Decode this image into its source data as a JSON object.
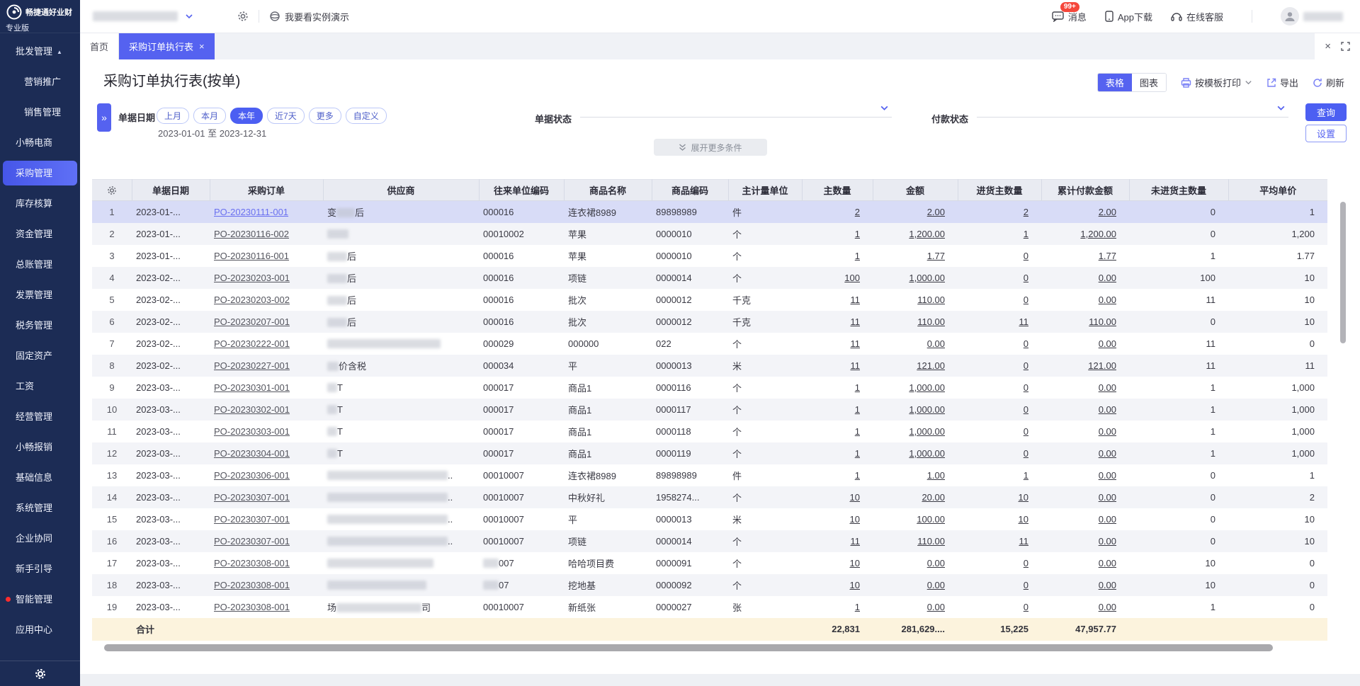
{
  "brand": {
    "name": "畅捷通好业财",
    "edition": "专业版"
  },
  "topbar": {
    "demo": "我要看实例演示",
    "messages": "消息",
    "badge": "99+",
    "app": "App下载",
    "support": "在线客服"
  },
  "tabs": [
    {
      "label": "首页"
    },
    {
      "label": "采购订单执行表"
    }
  ],
  "sidebar": {
    "items": [
      {
        "label": "批发管理",
        "arrow": true
      },
      {
        "label": "营销推广",
        "child": true
      },
      {
        "label": "销售管理",
        "child": true
      },
      {
        "label": "小畅电商"
      },
      {
        "label": "采购管理",
        "active": true
      },
      {
        "label": "库存核算"
      },
      {
        "label": "资金管理"
      },
      {
        "label": "总账管理"
      },
      {
        "label": "发票管理"
      },
      {
        "label": "税务管理"
      },
      {
        "label": "固定资产"
      },
      {
        "label": "工资"
      },
      {
        "label": "经营管理"
      },
      {
        "label": "小畅报销"
      },
      {
        "label": "基础信息"
      },
      {
        "label": "系统管理"
      },
      {
        "label": "企业协同"
      },
      {
        "label": "新手引导"
      },
      {
        "label": "智能管理",
        "dot": true
      },
      {
        "label": "应用中心"
      }
    ]
  },
  "page": {
    "title": "采购订单执行表(按单)",
    "view_table": "表格",
    "view_chart": "图表",
    "print": "按模板打印",
    "export": "导出",
    "refresh": "刷新"
  },
  "filters": {
    "date_label": "单据日期",
    "pills": [
      "上月",
      "本月",
      "本年",
      "近7天",
      "更多",
      "自定义"
    ],
    "active_pill": "本年",
    "date_range": "2023-01-01 至 2023-12-31",
    "status_label": "单据状态",
    "payment_label": "付款状态",
    "query": "查询",
    "settings": "设置",
    "expand": "展开更多条件"
  },
  "table": {
    "headers": [
      "单据日期",
      "采购订单",
      "供应商",
      "往来单位编码",
      "商品名称",
      "商品编码",
      "主计量单位",
      "主数量",
      "金额",
      "进货主数量",
      "累计付款金额",
      "未进货主数量",
      "平均单价"
    ],
    "rows": [
      {
        "n": 1,
        "date": "2023-01-...",
        "po": "PO-20230111-001",
        "sup": {
          "pre": "变",
          "blur": 26,
          "post": "后"
        },
        "code": "000016",
        "prod": "连衣裙8989",
        "pcode": "89898989",
        "unit": "件",
        "qty": "2",
        "amt": "2.00",
        "inq": "2",
        "paid": "2.00",
        "noin": "0",
        "avg": "1",
        "sel": true
      },
      {
        "n": 2,
        "date": "2023-01-...",
        "po": "PO-20230116-002",
        "sup": {
          "blur": 30
        },
        "code": "00010002",
        "prod": "苹果",
        "pcode": "0000010",
        "unit": "个",
        "qty": "1",
        "amt": "1,200.00",
        "inq": "1",
        "paid": "1,200.00",
        "noin": "0",
        "avg": "1,200"
      },
      {
        "n": 3,
        "date": "2023-01-...",
        "po": "PO-20230116-001",
        "sup": {
          "blur": 28,
          "post": "后"
        },
        "code": "000016",
        "prod": "苹果",
        "pcode": "0000010",
        "unit": "个",
        "qty": "1",
        "amt": "1.77",
        "inq": "0",
        "paid": "1.77",
        "noin": "1",
        "avg": "1.77"
      },
      {
        "n": 4,
        "date": "2023-02-...",
        "po": "PO-20230203-001",
        "sup": {
          "blur": 28,
          "post": "后"
        },
        "code": "000016",
        "prod": "项链",
        "pcode": "0000014",
        "unit": "个",
        "qty": "100",
        "amt": "1,000.00",
        "inq": "0",
        "paid": "0.00",
        "noin": "100",
        "avg": "10"
      },
      {
        "n": 5,
        "date": "2023-02-...",
        "po": "PO-20230203-002",
        "sup": {
          "blur": 28,
          "post": "后"
        },
        "code": "000016",
        "prod": "批次",
        "pcode": "0000012",
        "unit": "千克",
        "qty": "11",
        "amt": "110.00",
        "inq": "0",
        "paid": "0.00",
        "noin": "11",
        "avg": "10"
      },
      {
        "n": 6,
        "date": "2023-02-...",
        "po": "PO-20230207-001",
        "sup": {
          "blur": 28,
          "post": "后"
        },
        "code": "000016",
        "prod": "批次",
        "pcode": "0000012",
        "unit": "千克",
        "qty": "11",
        "amt": "110.00",
        "inq": "11",
        "paid": "110.00",
        "noin": "0",
        "avg": "10"
      },
      {
        "n": 7,
        "date": "2023-02-...",
        "po": "PO-20230222-001",
        "sup": {
          "blur": 160
        },
        "code": "000029",
        "prod": "000000",
        "pcode": "022",
        "unit": "个",
        "qty": "11",
        "amt": "0.00",
        "inq": "0",
        "paid": "0.00",
        "noin": "11",
        "avg": "0"
      },
      {
        "n": 8,
        "date": "2023-02-...",
        "po": "PO-20230227-001",
        "sup": {
          "blur": 16,
          "post": "价含税"
        },
        "code": "000034",
        "prod": "平",
        "pcode": "0000013",
        "unit": "米",
        "qty": "11",
        "amt": "121.00",
        "inq": "0",
        "paid": "121.00",
        "noin": "11",
        "avg": "11"
      },
      {
        "n": 9,
        "date": "2023-03-...",
        "po": "PO-20230301-001",
        "sup": {
          "blur": 14,
          "post": "T"
        },
        "code": "000017",
        "prod": "商品1",
        "pcode": "0000116",
        "unit": "个",
        "qty": "1",
        "amt": "1,000.00",
        "inq": "0",
        "paid": "0.00",
        "noin": "1",
        "avg": "1,000"
      },
      {
        "n": 10,
        "date": "2023-03-...",
        "po": "PO-20230302-001",
        "sup": {
          "blur": 14,
          "post": "T"
        },
        "code": "000017",
        "prod": "商品1",
        "pcode": "0000117",
        "unit": "个",
        "qty": "1",
        "amt": "1,000.00",
        "inq": "0",
        "paid": "0.00",
        "noin": "1",
        "avg": "1,000"
      },
      {
        "n": 11,
        "date": "2023-03-...",
        "po": "PO-20230303-001",
        "sup": {
          "blur": 14,
          "post": "T"
        },
        "code": "000017",
        "prod": "商品1",
        "pcode": "0000118",
        "unit": "个",
        "qty": "1",
        "amt": "1,000.00",
        "inq": "0",
        "paid": "0.00",
        "noin": "1",
        "avg": "1,000"
      },
      {
        "n": 12,
        "date": "2023-03-...",
        "po": "PO-20230304-001",
        "sup": {
          "blur": 14,
          "post": "T"
        },
        "code": "000017",
        "prod": "商品1",
        "pcode": "0000119",
        "unit": "个",
        "qty": "1",
        "amt": "1,000.00",
        "inq": "0",
        "paid": "0.00",
        "noin": "1",
        "avg": "1,000"
      },
      {
        "n": 13,
        "date": "2023-03-...",
        "po": "PO-20230306-001",
        "sup": {
          "blur": 170,
          "post": ".."
        },
        "code": "00010007",
        "prod": "连衣裙8989",
        "pcode": "89898989",
        "unit": "件",
        "qty": "1",
        "amt": "1.00",
        "inq": "1",
        "paid": "0.00",
        "noin": "0",
        "avg": "1"
      },
      {
        "n": 14,
        "date": "2023-03-...",
        "po": "PO-20230307-001",
        "sup": {
          "blur": 170,
          "post": ".."
        },
        "code": "00010007",
        "prod": "中秋好礼",
        "pcode": "1958274...",
        "unit": "个",
        "qty": "10",
        "amt": "20.00",
        "inq": "10",
        "paid": "0.00",
        "noin": "0",
        "avg": "2"
      },
      {
        "n": 15,
        "date": "2023-03-...",
        "po": "PO-20230307-001",
        "sup": {
          "blur": 170,
          "post": ".."
        },
        "code": "00010007",
        "prod": "平",
        "pcode": "0000013",
        "unit": "米",
        "qty": "10",
        "amt": "100.00",
        "inq": "10",
        "paid": "0.00",
        "noin": "0",
        "avg": "10"
      },
      {
        "n": 16,
        "date": "2023-03-...",
        "po": "PO-20230307-001",
        "sup": {
          "blur": 170,
          "post": ".."
        },
        "code": "00010007",
        "prod": "项链",
        "pcode": "0000014",
        "unit": "个",
        "qty": "11",
        "amt": "110.00",
        "inq": "11",
        "paid": "0.00",
        "noin": "0",
        "avg": "10"
      },
      {
        "n": 17,
        "date": "2023-03-...",
        "po": "PO-20230308-001",
        "sup": {
          "blur": 150
        },
        "codeBlur": 22,
        "code": "007",
        "prod": "哈哈项目费",
        "pcode": "0000091",
        "unit": "个",
        "qty": "10",
        "amt": "0.00",
        "inq": "0",
        "paid": "0.00",
        "noin": "10",
        "avg": "0"
      },
      {
        "n": 18,
        "date": "2023-03-...",
        "po": "PO-20230308-001",
        "sup": {
          "blur": 140
        },
        "codeBlur": 22,
        "code": "07",
        "prod": "挖地基",
        "pcode": "0000092",
        "unit": "个",
        "qty": "10",
        "amt": "0.00",
        "inq": "0",
        "paid": "0.00",
        "noin": "10",
        "avg": "0"
      },
      {
        "n": 19,
        "date": "2023-03-...",
        "po": "PO-20230308-001",
        "sup": {
          "pre": "场",
          "blur": 120,
          "post": "司"
        },
        "code": "00010007",
        "prod": "新纸张",
        "pcode": "0000027",
        "unit": "张",
        "qty": "1",
        "amt": "0.00",
        "inq": "0",
        "paid": "0.00",
        "noin": "1",
        "avg": "0"
      }
    ],
    "total": {
      "label": "合计",
      "qty": "22,831",
      "amount": "281,629....",
      "in_qty": "15,225",
      "paid": "47,957.77"
    }
  },
  "colors": {
    "accent": "#5562f0",
    "sidebar": "#1c2c55",
    "selected_row": "#d8dcf7",
    "total_row": "#fcf3dd",
    "badge": "#f5473b"
  }
}
